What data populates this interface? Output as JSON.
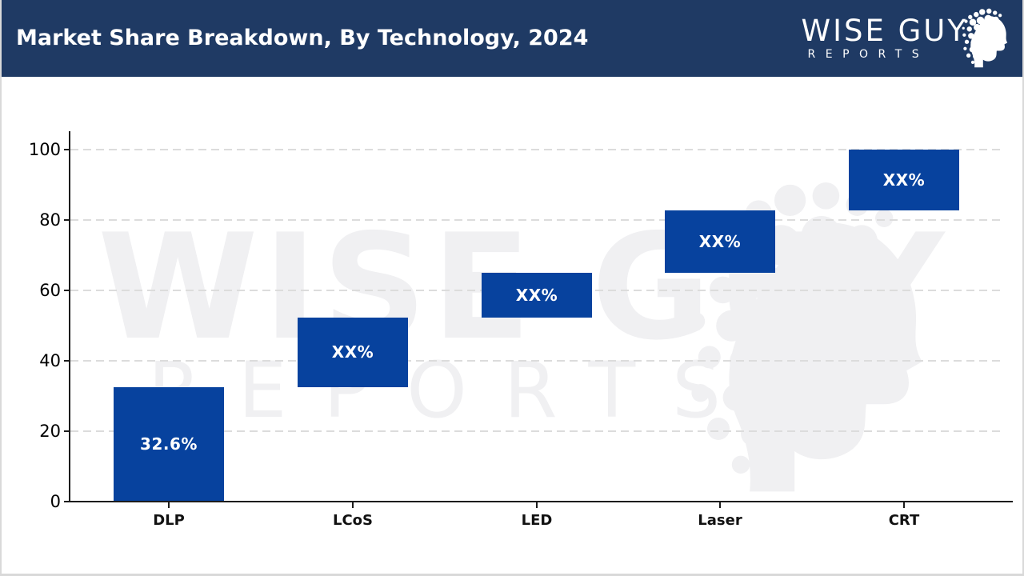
{
  "header": {
    "title": "Market Share Breakdown, By Technology, 2024",
    "logo": {
      "primary": "WISE GUY",
      "secondary": "REPORTS",
      "icon": "dotted-head-profile"
    }
  },
  "watermark": {
    "line1": "WISE GUY",
    "line2": "REPORTS"
  },
  "colors": {
    "header_bg": "#1f3a64",
    "bar": "#07429e",
    "axis": "#1c1c1c",
    "grid": "#dcdcdc",
    "watermark": "#f0f0f2"
  },
  "chart_data": {
    "type": "bar",
    "subtype": "waterfall",
    "title": "Market Share Breakdown, By Technology, 2024",
    "unit": "%",
    "categories": [
      "DLP",
      "LCoS",
      "LED",
      "Laser",
      "CRT"
    ],
    "segments": [
      {
        "category": "DLP",
        "label": "32.6%",
        "start": 0,
        "end": 32.6
      },
      {
        "category": "LCoS",
        "label": "XX%",
        "start": 32.6,
        "end": 52.3
      },
      {
        "category": "LED",
        "label": "XX%",
        "start": 52.3,
        "end": 65.0
      },
      {
        "category": "Laser",
        "label": "XX%",
        "start": 65.0,
        "end": 82.7
      },
      {
        "category": "CRT",
        "label": "XX%",
        "start": 82.7,
        "end": 100.0
      }
    ],
    "xlabel": "",
    "ylabel": "",
    "ylim": [
      0,
      100
    ],
    "yticks": [
      0,
      20,
      40,
      60,
      80,
      100
    ],
    "grid": "horizontal-dashed",
    "legend": "none",
    "bar_color": "#07429e",
    "value_label_color": "#ffffff"
  }
}
